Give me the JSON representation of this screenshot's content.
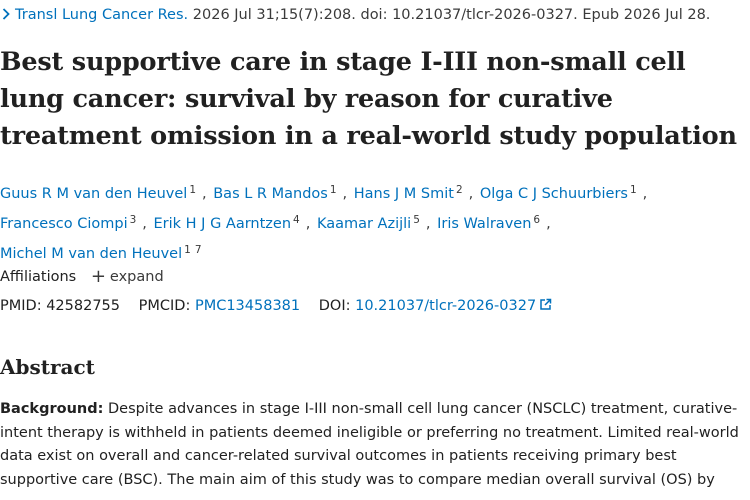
{
  "citation": {
    "journal": "Transl Lung Cancer Res.",
    "details": "2026 Jul 31;15(7):208. doi: 10.21037/tlcr-2026-0327. Epub 2026 Jul 28."
  },
  "title": "Best supportive care in stage I-III non-small cell lung cancer: survival by reason for curative treatment omission in a real-world study population",
  "authors": [
    {
      "name": "Guus R M van den Heuvel",
      "affiliations": [
        "1"
      ]
    },
    {
      "name": "Bas L R Mandos",
      "affiliations": [
        "1"
      ]
    },
    {
      "name": "Hans J M Smit",
      "affiliations": [
        "2"
      ]
    },
    {
      "name": "Olga C J Schuurbiers",
      "affiliations": [
        "1"
      ]
    },
    {
      "name": "Francesco Ciompi",
      "affiliations": [
        "3"
      ]
    },
    {
      "name": "Erik H J G Aarntzen",
      "affiliations": [
        "4"
      ]
    },
    {
      "name": "Kaamar Azijli",
      "affiliations": [
        "5"
      ]
    },
    {
      "name": "Iris Walraven",
      "affiliations": [
        "6"
      ]
    },
    {
      "name": "Michel M van den Heuvel",
      "affiliations": [
        "1",
        "7"
      ]
    }
  ],
  "affiliations": {
    "label": "Affiliations",
    "expand_label": "expand"
  },
  "identifiers": {
    "pmid_label": "PMID:",
    "pmid": "42582755",
    "pmcid_label": "PMCID:",
    "pmcid": "PMC13458381",
    "doi_label": "DOI:",
    "doi": "10.21037/tlcr-2026-0327"
  },
  "abstract": {
    "heading": "Abstract",
    "background_label": "Background:",
    "background_text": "Despite advances in stage I-III non-small cell lung cancer (NSCLC) treatment, curative-intent therapy is withheld in patients deemed ineligible or preferring no treatment. Limited real-world data exist on overall and cancer-related survival outcomes in patients receiving primary best supportive care (BSC). The main aim of this study was to compare median overall survival (OS) by"
  },
  "colors": {
    "link": "#0071bc",
    "text": "#212121"
  }
}
